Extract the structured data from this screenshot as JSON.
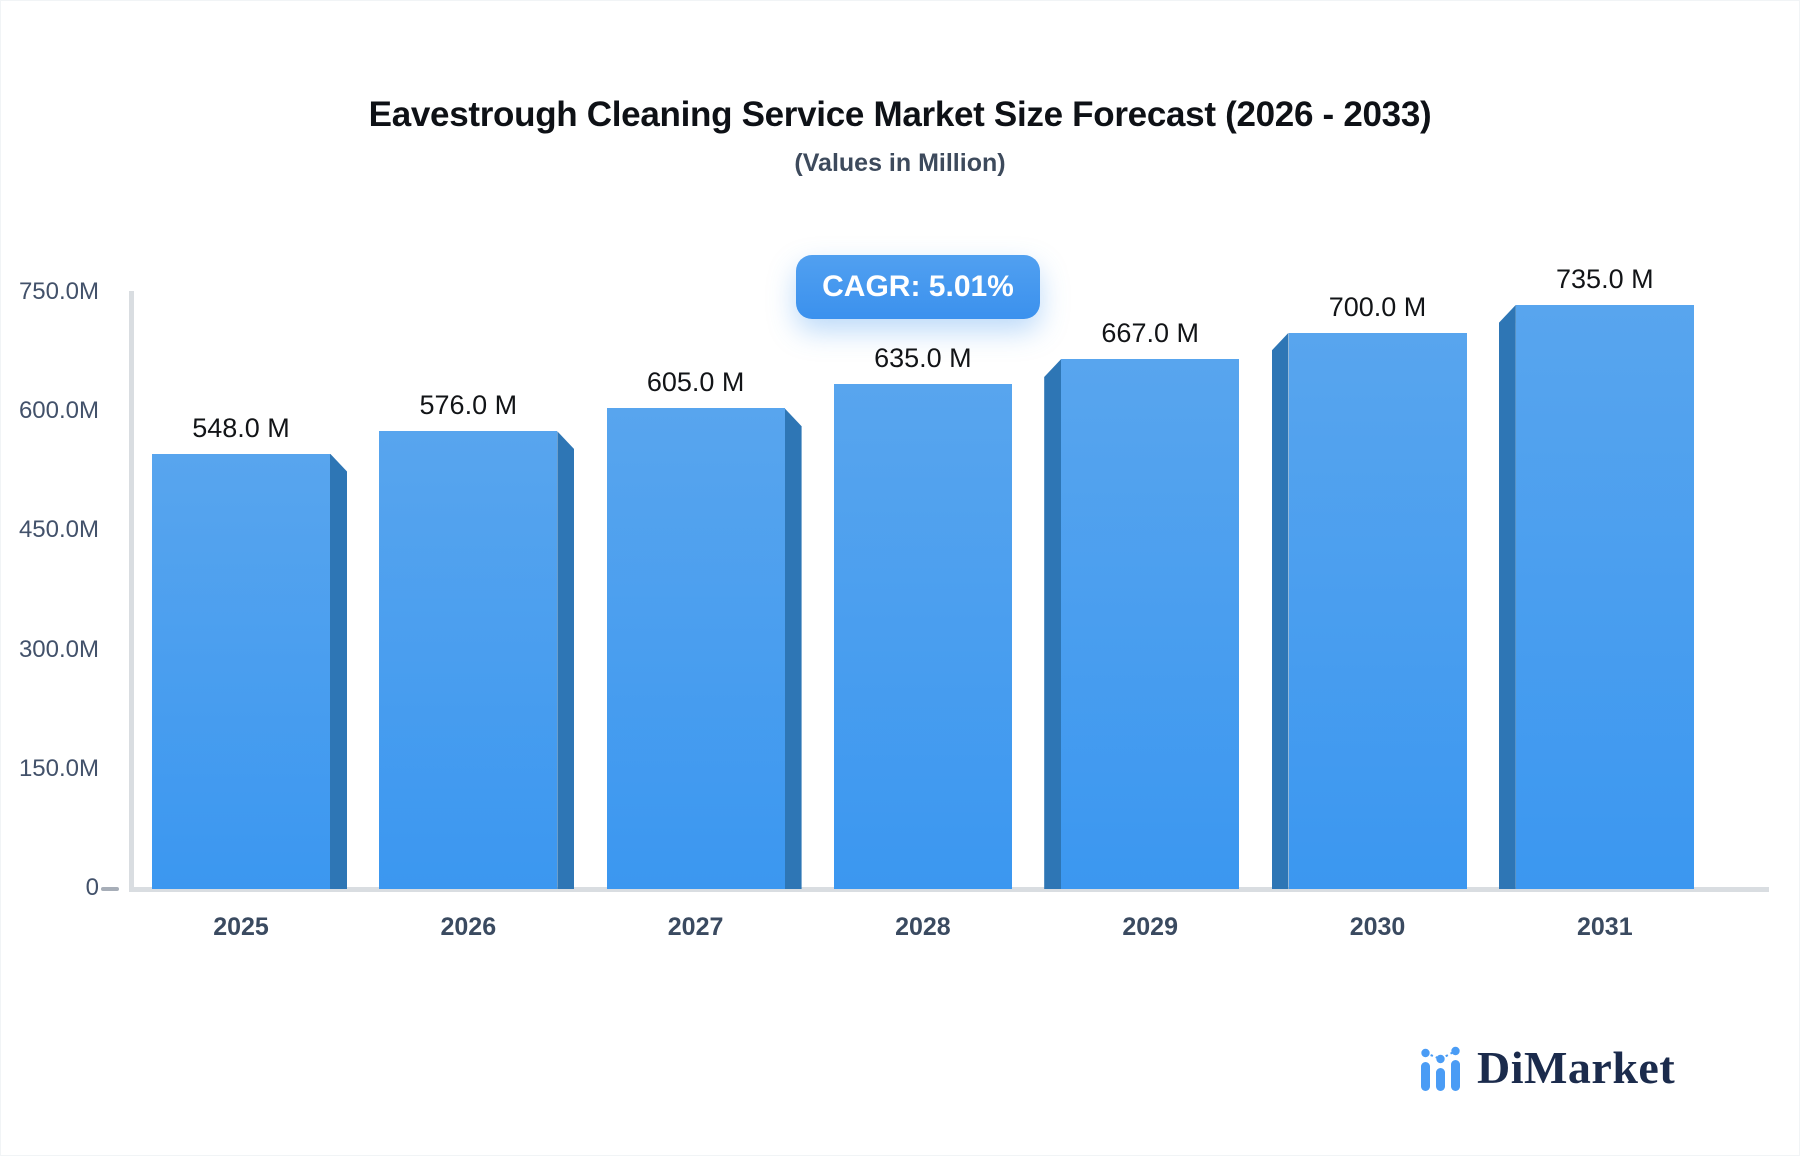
{
  "title": "Eavestrough Cleaning Service Market Size Forecast (2026 - 2033)",
  "subtitle": "(Values in Million)",
  "cagr_badge": "CAGR: 5.01%",
  "brand": {
    "name": "DiMarket"
  },
  "colors": {
    "bar_face_top": "#58a5ee",
    "bar_face_bottom": "#3b97f0",
    "bar_side": "#2e76b5",
    "badge_top": "#51a0f0",
    "badge_bottom": "#3b91ee",
    "axis_line": "#d9dde1",
    "tick_dash": "#a7aeb8",
    "logo_blue": "#4a9cf5",
    "brand_navy": "#1b2b4c"
  },
  "chart_data": {
    "type": "bar",
    "categories": [
      "2025",
      "2026",
      "2027",
      "2028",
      "2029",
      "2030",
      "2031"
    ],
    "values": [
      548,
      576,
      605,
      635,
      667,
      700,
      735
    ],
    "value_labels": [
      "548.0 M",
      "576.0 M",
      "605.0 M",
      "635.0 M",
      "667.0 M",
      "700.0 M",
      "735.0 M"
    ],
    "title": "Eavestrough Cleaning Service Market Size Forecast (2026 - 2033)",
    "subtitle": "(Values in Million)",
    "xlabel": "",
    "ylabel": "",
    "ylim": [
      0,
      750
    ],
    "grid": false,
    "legend": false,
    "yticks": [
      {
        "label": "750.0M",
        "value": 750
      },
      {
        "label": "600.0M",
        "value": 600
      },
      {
        "label": "450.0M",
        "value": 450
      },
      {
        "label": "300.0M",
        "value": 300
      },
      {
        "label": "150.0M",
        "value": 150
      },
      {
        "label": "0",
        "value": 0
      }
    ]
  }
}
